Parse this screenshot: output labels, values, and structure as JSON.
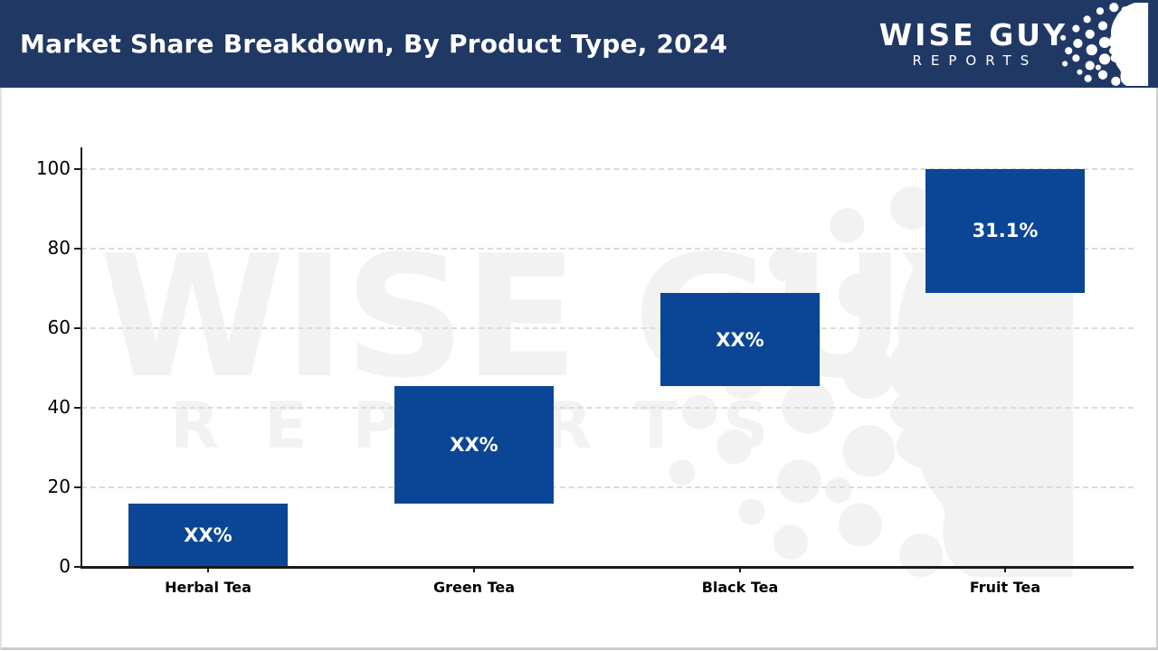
{
  "header": {
    "title": "Market Share Breakdown, By Product Type, 2024",
    "logo": {
      "name": "WISE GUY",
      "tagline": "REPORTS",
      "icon": "dotted-head-icon"
    }
  },
  "watermark": {
    "name": "WISE GUY",
    "tagline": "REPORTS",
    "icon": "dotted-head-icon"
  },
  "colors": {
    "header_bg": "#203864",
    "bar": "#0b4696",
    "bar_label": "#ffffff",
    "grid": "#dbdbdb",
    "axis": "#1a1a1a",
    "watermark": "#f2f2f2"
  },
  "chart_data": {
    "type": "bar",
    "subtype": "waterfall",
    "title": "Market Share Breakdown, By Product Type, 2024",
    "categories": [
      "Herbal Tea",
      "Green Tea",
      "Black Tea",
      "Fruit Tea"
    ],
    "bars": [
      {
        "category": "Herbal Tea",
        "start": 0,
        "end": 15.9,
        "label": "XX%"
      },
      {
        "category": "Green Tea",
        "start": 15.9,
        "end": 45.4,
        "label": "XX%"
      },
      {
        "category": "Black Tea",
        "start": 45.4,
        "end": 68.9,
        "label": "XX%"
      },
      {
        "category": "Fruit Tea",
        "start": 68.9,
        "end": 100.0,
        "label": "31.1%"
      }
    ],
    "ylim": [
      0,
      100
    ],
    "yticks": [
      0,
      20,
      40,
      60,
      80,
      100
    ],
    "xlabel": "",
    "ylabel": "",
    "grid": "horizontal-dashed",
    "legend": null
  }
}
